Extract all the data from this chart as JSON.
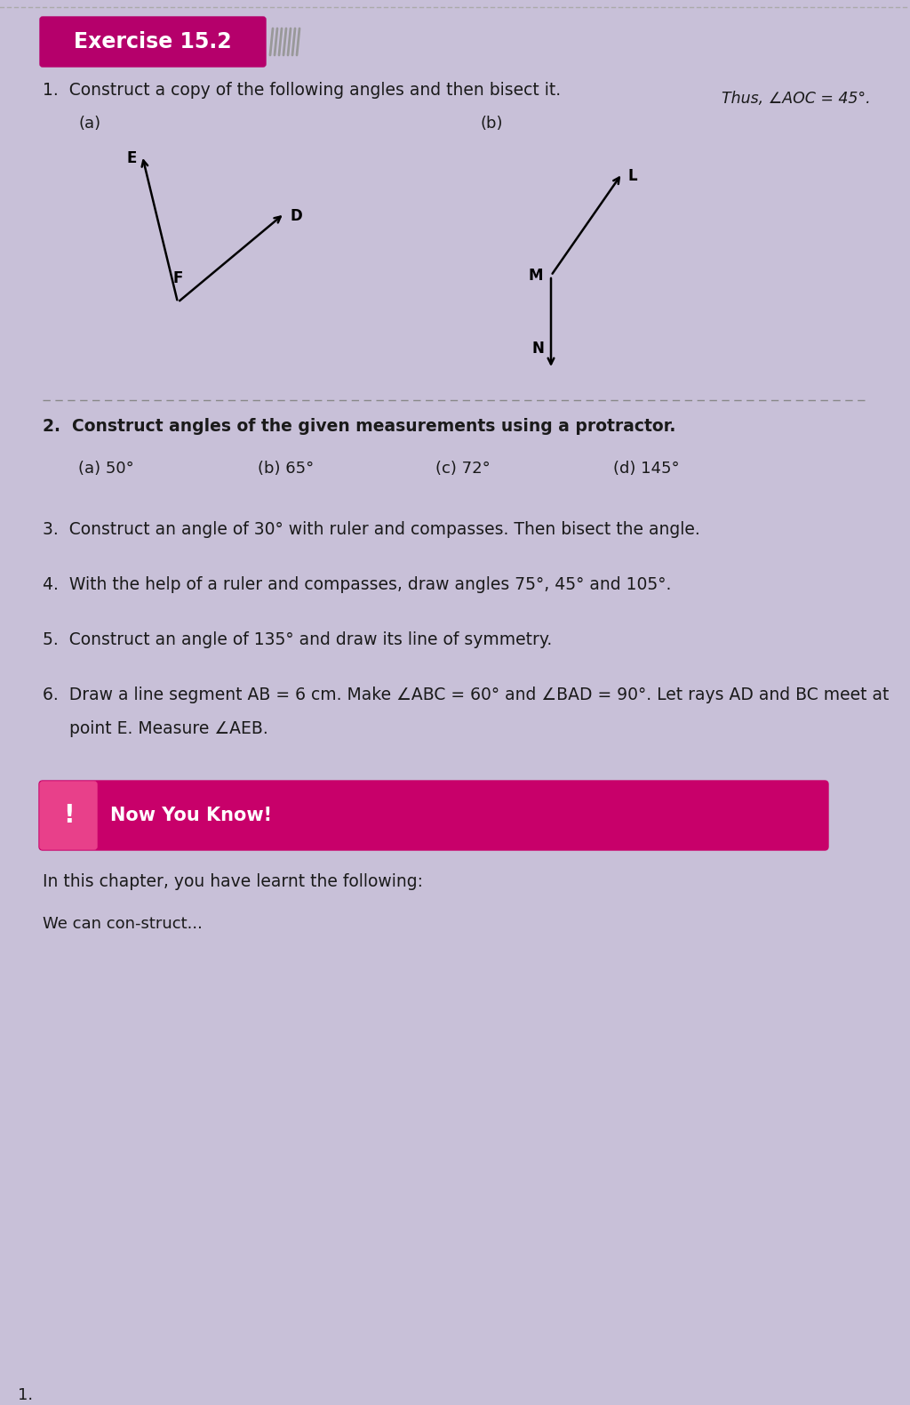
{
  "title": "Exercise 15.2",
  "background_color": "#c8c0d8",
  "text_color": "#1a1a1a",
  "title_bg": "#b5006b",
  "q1_text": "1.  Construct a copy of the following angles and then bisect it.",
  "q1a_label": "(a)",
  "q1b_label": "(b)",
  "thus_text": "Thus, ∠AOC = 45°.",
  "q2_bold": "2.  Construct angles of the given measurements using a protractor.",
  "q2a": "(a) 50°",
  "q2b": "(b) 65°",
  "q2c": "(c) 72°",
  "q2d": "(d) 145°",
  "q3": "3.  Construct an angle of 30° with ruler and compasses. Then bisect the angle.",
  "q4": "4.  With the help of a ruler and compasses, draw angles 75°, 45° and 105°.",
  "q5": "5.  Construct an angle of 135° and draw its line of symmetry.",
  "q6a": "6.  Draw a line segment AB = 6 cm. Make ∠ABC = 60° and ∠BAD = 90°. Let rays AD and BC meet at",
  "q6b": "     point E. Measure ∠AEB.",
  "nyk_title": "Now You Know!",
  "itc_line1": "In this chapter, you have learnt the following:",
  "itc_line2": "We can con­struct..."
}
